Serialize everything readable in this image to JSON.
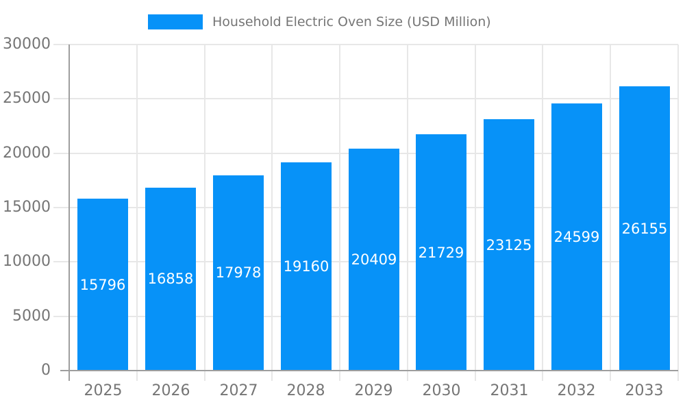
{
  "chart_data": {
    "type": "bar",
    "title": "Household Electric Oven Size (USD Million)",
    "categories": [
      "2025",
      "2026",
      "2027",
      "2028",
      "2029",
      "2030",
      "2031",
      "2032",
      "2033"
    ],
    "values": [
      15796,
      16858,
      17978,
      19160,
      20409,
      21729,
      23125,
      24599,
      26155
    ],
    "xlabel": "",
    "ylabel": "",
    "ylim": [
      0,
      30000
    ],
    "yticks": [
      0,
      5000,
      10000,
      15000,
      20000,
      25000,
      30000
    ],
    "grid": true,
    "legend_position": "top",
    "value_labels_inside_bars": true,
    "colors": {
      "bar": "#0792f8",
      "bar_value_label": "#ffffff",
      "axis_text": "#757575",
      "axis_line": "#9e9e9e",
      "gridline": "#e7e7e7",
      "background": "#ffffff"
    }
  }
}
